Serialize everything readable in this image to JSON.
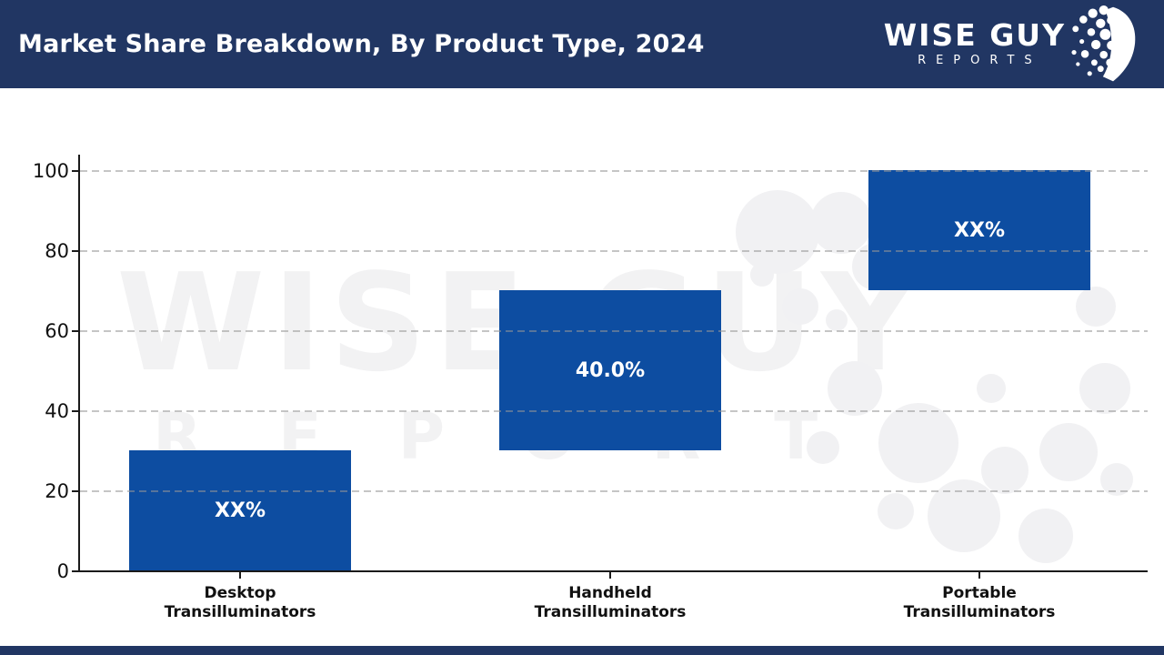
{
  "header": {
    "title": "Market Share Breakdown, By Product Type, 2024",
    "logo": {
      "line1": "WISE GUY",
      "line2": "REPORTS"
    }
  },
  "watermark": {
    "line1": "WISE GUY",
    "line2": "REPORTS"
  },
  "chart_data": {
    "type": "bar",
    "variant": "floating-segment-bar",
    "title": "Market Share Breakdown, By Product Type, 2024",
    "categories": [
      "Desktop\nTransilluminators",
      "Handheld\nTransilluminators",
      "Portable\nTransilluminators"
    ],
    "segments": [
      {
        "category": "Desktop Transilluminators",
        "start": 0,
        "end": 30,
        "label": "XX%"
      },
      {
        "category": "Handheld Transilluminators",
        "start": 30,
        "end": 70,
        "label": "40.0%"
      },
      {
        "category": "Portable Transilluminators",
        "start": 70,
        "end": 100,
        "label": "XX%"
      }
    ],
    "yticks": [
      0,
      20,
      40,
      60,
      80,
      100
    ],
    "ylim": [
      0,
      100
    ],
    "xlabel": "",
    "ylabel": "",
    "grid": "horizontal-dashed",
    "legend": "none"
  },
  "colors": {
    "header_navy": "#213663",
    "bar_blue": "#0d4da1",
    "bar_label": "#ffffff",
    "grid_gray": "#d4d4d4",
    "axis_black": "#1a1a1a",
    "watermark_gray": "#f2f2f3"
  }
}
